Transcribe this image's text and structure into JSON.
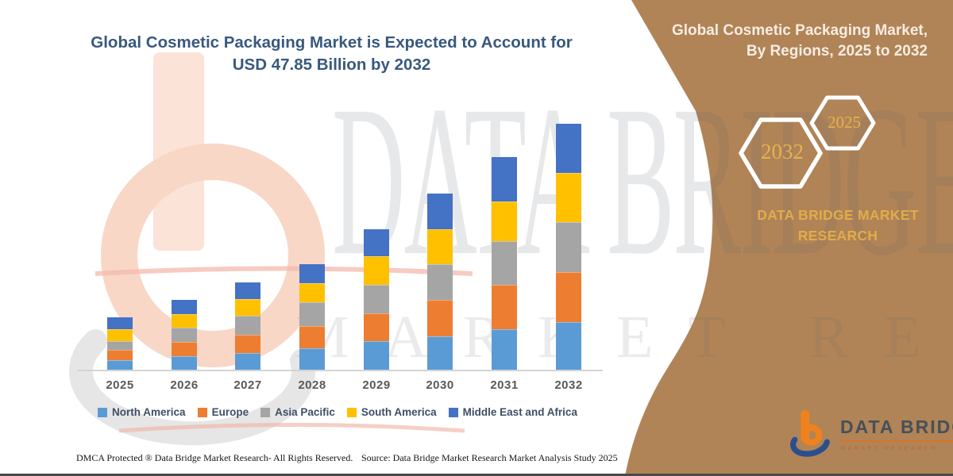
{
  "main_title": {
    "line1": "Global Cosmetic Packaging Market is Expected to Account for",
    "line2": "USD 47.85 Billion by 2032"
  },
  "side_panel": {
    "title_line1": "Global Cosmetic Packaging Market,",
    "title_line2": "By Regions, 2025 to 2032",
    "hexagon_large_label": "2032",
    "hexagon_small_label": "2025",
    "brand_line1": "DATA BRIDGE MARKET",
    "brand_line2": "RESEARCH",
    "background_color": "#B08457",
    "accent_text_color": "#E2AC49"
  },
  "watermark": {
    "row1": "DATA BRIDGE",
    "row2": "MARKET RESEARCH"
  },
  "logo": {
    "name": "DATA BRIDGE",
    "tagline": "MARKET RESEARCH"
  },
  "footer": {
    "left": "DMCA Protected ® Data Bridge Market Research-  All Rights Reserved.",
    "source": "Source: Data Bridge Market Research  Market Analysis Study 2025"
  },
  "chart_data": {
    "type": "bar",
    "stacked": true,
    "title": "Global Cosmetic Packaging Market is Expected to Account for USD 47.85 Billion by 2032",
    "unit": "USD Billion",
    "xlabel": "",
    "ylabel": "",
    "ylim": [
      0,
      50
    ],
    "grid": false,
    "legend_position": "bottom",
    "categories": [
      "2025",
      "2026",
      "2027",
      "2028",
      "2029",
      "2030",
      "2031",
      "2032"
    ],
    "series": [
      {
        "name": "North America",
        "color": "#5B9BD5",
        "values": [
          1.9,
          2.6,
          3.3,
          4.1,
          5.5,
          6.4,
          7.9,
          9.2
        ]
      },
      {
        "name": "Europe",
        "color": "#ED7D31",
        "values": [
          1.9,
          2.8,
          3.4,
          4.4,
          5.4,
          7.2,
          8.5,
          9.7
        ]
      },
      {
        "name": "Asia Pacific",
        "color": "#A5A5A5",
        "values": [
          1.8,
          2.8,
          3.7,
          4.5,
          5.6,
          6.9,
          8.5,
          9.7
        ]
      },
      {
        "name": "South America",
        "color": "#FFC000",
        "values": [
          2.3,
          2.6,
          3.3,
          3.7,
          5.5,
          6.7,
          7.7,
          9.5
        ]
      },
      {
        "name": "Middle East and Africa",
        "color": "#4472C4",
        "values": [
          2.3,
          2.8,
          3.2,
          3.8,
          5.2,
          6.9,
          8.6,
          9.6
        ]
      }
    ],
    "totals_estimated": [
      10.2,
      13.6,
      17.0,
      20.5,
      27.2,
      34.1,
      41.2,
      47.85
    ],
    "annotation": "USD 47.85 Billion by 2032"
  }
}
